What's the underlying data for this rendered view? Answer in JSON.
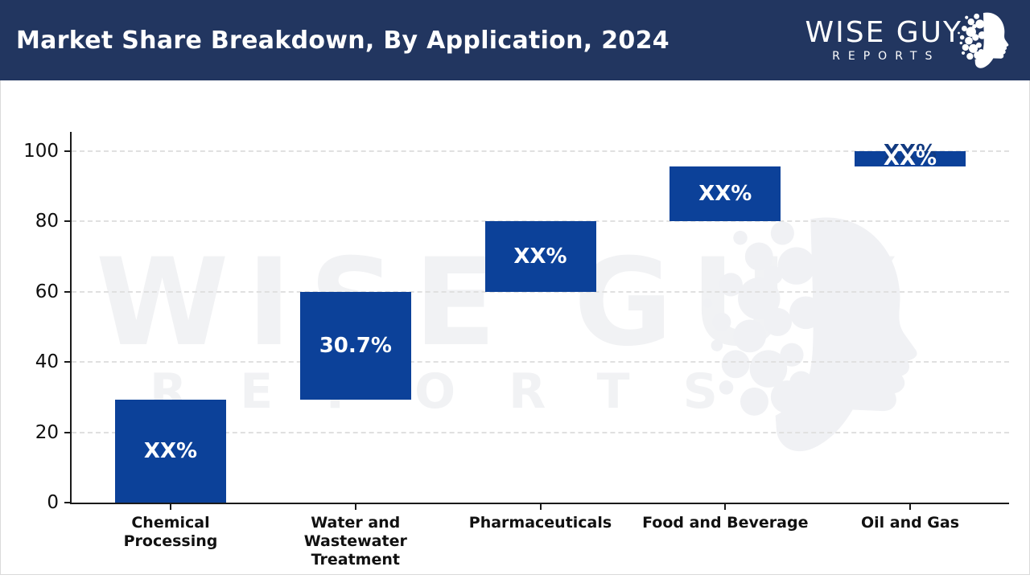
{
  "header": {
    "title": "Market Share Breakdown, By Application, 2024",
    "logo": {
      "line1": "WISE GUY",
      "line2": "REPORTS"
    }
  },
  "watermark": {
    "line1": "WISE GUY",
    "line2": "REPORTS"
  },
  "colors": {
    "header_bg": "#223660",
    "bar": "#0c4199",
    "bar_label": "#ffffff",
    "bar_label_overflow": "#123a80",
    "gridline": "#e0e0e0",
    "watermark": "#f1f2f4"
  },
  "chart_data": {
    "type": "bar",
    "variant": "floating-waterfall",
    "title": "Market Share Breakdown, By Application, 2024",
    "xlabel": "",
    "ylabel": "",
    "ylim": [
      0,
      105
    ],
    "yticks": [
      0,
      20,
      40,
      60,
      80,
      100
    ],
    "grid": "dashed-horizontal",
    "legend": "none",
    "categories": [
      "Chemical\nProcessing",
      "Water and\nWastewater\nTreatment",
      "Pharmaceuticals",
      "Food and Beverage",
      "Oil and Gas"
    ],
    "segments": [
      {
        "category": "Chemical Processing",
        "start": 0,
        "end": 29.3,
        "label": "XX%"
      },
      {
        "category": "Water and Wastewater Treatment",
        "start": 29.3,
        "end": 60,
        "label": "30.7%"
      },
      {
        "category": "Pharmaceuticals",
        "start": 60,
        "end": 80,
        "label": "XX%"
      },
      {
        "category": "Food and Beverage",
        "start": 80,
        "end": 95.5,
        "label": "XX%"
      },
      {
        "category": "Oil and Gas",
        "start": 95.5,
        "end": 100,
        "label": "XX%"
      }
    ]
  }
}
